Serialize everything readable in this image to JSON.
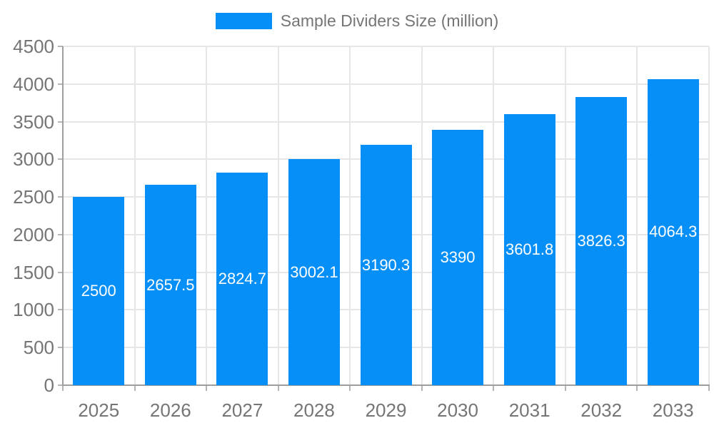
{
  "legend": {
    "label": "Sample Dividers Size (million)"
  },
  "chart_data": {
    "type": "bar",
    "title": "Sample Dividers Size (million)",
    "categories": [
      "2025",
      "2026",
      "2027",
      "2028",
      "2029",
      "2030",
      "2031",
      "2032",
      "2033"
    ],
    "series": [
      {
        "name": "Sample Dividers Size (million)",
        "values": [
          2500,
          2657.5,
          2824.7,
          3002.1,
          3190.3,
          3390,
          3601.8,
          3826.3,
          4064.3
        ]
      }
    ],
    "value_labels": [
      "2500",
      "2657.5",
      "2824.7",
      "3002.1",
      "3190.3",
      "3390",
      "3601.8",
      "3826.3",
      "4064.3"
    ],
    "xlabel": "",
    "ylabel": "",
    "ylim": [
      0,
      4500
    ],
    "ytick_step": 500,
    "ytick_labels": [
      "0",
      "500",
      "1000",
      "1500",
      "2000",
      "2500",
      "3000",
      "3500",
      "4000",
      "4500"
    ],
    "grid": true,
    "legend_position": "top",
    "colors": {
      "bar": "#0690F7",
      "grid": "#E6E6E6",
      "axis": "#9E9E9E",
      "tick": "#B5B5B5",
      "label_text": "#757575",
      "value_text": "#FFFFFF"
    }
  }
}
